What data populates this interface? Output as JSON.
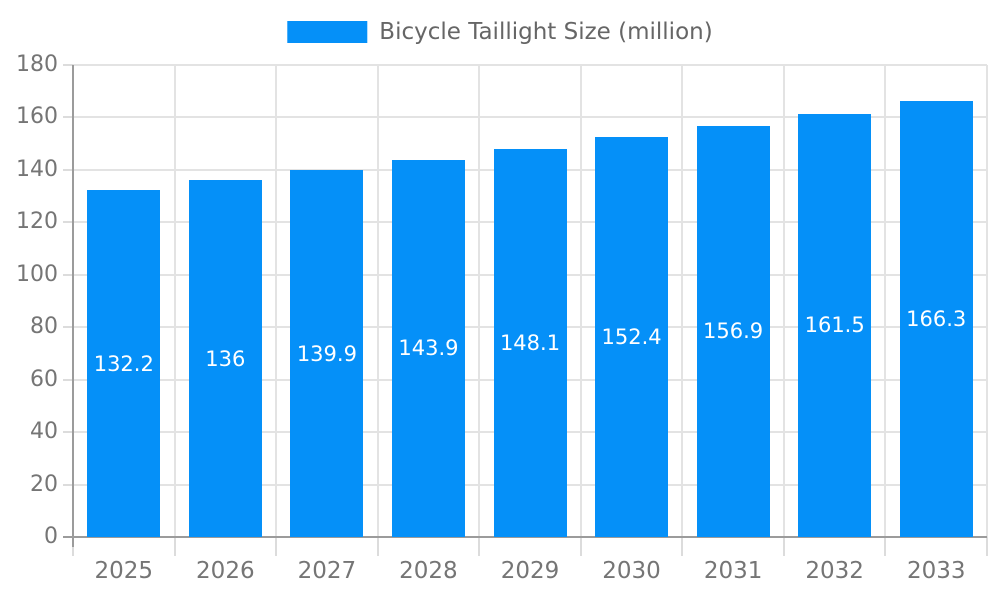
{
  "chart_data": {
    "type": "bar",
    "title": "Bicycle Taillight Size (million)",
    "categories": [
      "2025",
      "2026",
      "2027",
      "2028",
      "2029",
      "2030",
      "2031",
      "2032",
      "2033"
    ],
    "series": [
      {
        "name": "Bicycle Taillight Size (million)",
        "values": [
          132.2,
          136,
          139.9,
          143.9,
          148.1,
          152.4,
          156.9,
          161.5,
          166.3
        ],
        "value_labels": [
          "132.2",
          "136",
          "139.9",
          "143.9",
          "148.1",
          "152.4",
          "156.9",
          "161.5",
          "166.3"
        ]
      }
    ],
    "xlabel": "",
    "ylabel": "",
    "ylim": [
      0,
      180
    ],
    "ytick_step": 20,
    "ytick_labels": [
      "0",
      "20",
      "40",
      "60",
      "80",
      "100",
      "120",
      "140",
      "160",
      "180"
    ],
    "grid": true,
    "legend_position": "top",
    "colors": {
      "bar": "#0590f8",
      "axis_line": "#9b9b9b",
      "grid_line": "#e3e3e3",
      "tick_mark": "#dcdcdc",
      "tick_label": "#757575",
      "legend_text": "#666666",
      "value_label": "#ffffff",
      "background": "#ffffff"
    }
  }
}
